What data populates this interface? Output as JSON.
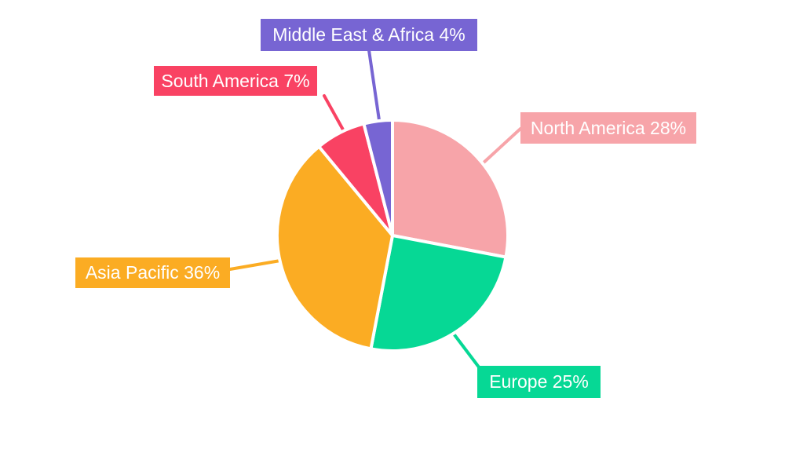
{
  "figure": {
    "background": "#FFFFFF"
  },
  "chart_data": {
    "type": "pie",
    "title": "",
    "categories": [
      "North America",
      "Europe",
      "Asia Pacific",
      "South America",
      "Middle East & Africa"
    ],
    "values": [
      28,
      25,
      36,
      7,
      4
    ],
    "unit": "%",
    "series_colors": [
      "#F7A4A9",
      "#06D895",
      "#FBAC23",
      "#F94263",
      "#7765D3"
    ],
    "slice_labels": [
      "North America 28%",
      "Europe 25%",
      "Asia Pacific 36%",
      "South America 7%",
      "Middle East & Africa 4%"
    ],
    "label_text_color": "#FFFFFF",
    "separator_color": "#FFFFFF",
    "start_angle_deg": -90,
    "direction": "clockwise",
    "legend_position": "none",
    "grid": false
  }
}
